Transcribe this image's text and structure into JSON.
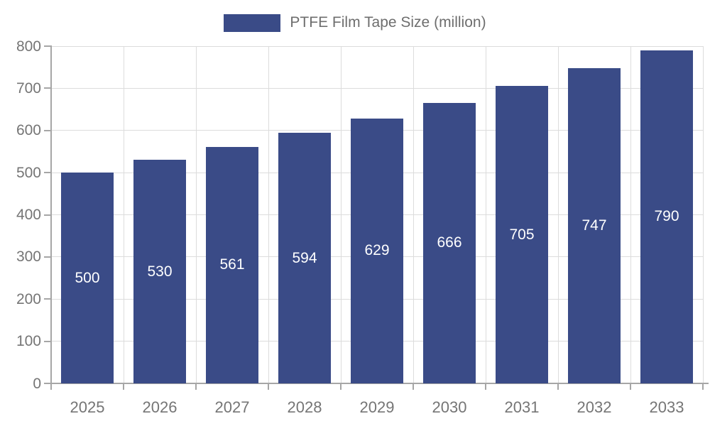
{
  "chart_data": {
    "type": "bar",
    "title": "PTFE Film Tape Size (million)",
    "categories": [
      "2025",
      "2026",
      "2027",
      "2028",
      "2029",
      "2030",
      "2031",
      "2032",
      "2033"
    ],
    "series": [
      {
        "name": "PTFE Film Tape Size (million)",
        "values": [
          500,
          530,
          561,
          594,
          629,
          666,
          705,
          747,
          790
        ]
      }
    ],
    "xlabel": "",
    "ylabel": "",
    "ylim": [
      0,
      800
    ],
    "yticks": [
      0,
      100,
      200,
      300,
      400,
      500,
      600,
      700,
      800
    ],
    "grid": true,
    "legend_position": "top-center",
    "value_label_position": "inside-center"
  },
  "colors": {
    "bar": "#3A4B87",
    "value-label": "#FFFFFF",
    "grid": "#DCDCDC",
    "axis": "#A6A6A6",
    "tick-label": "#757575",
    "title": "#6E6E6E",
    "background": "#FFFFFF"
  }
}
